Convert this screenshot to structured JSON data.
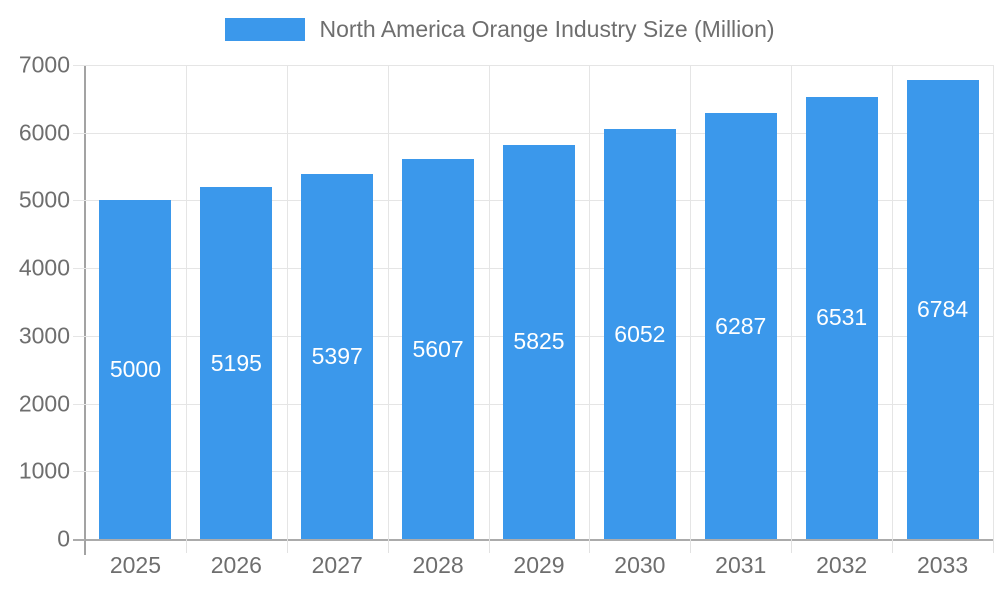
{
  "chart_data": {
    "type": "bar",
    "title": "North America Orange Industry Size (Million)",
    "legend": {
      "position": "top",
      "label": "North America Orange Industry Size (Million)"
    },
    "categories": [
      "2025",
      "2026",
      "2027",
      "2028",
      "2029",
      "2030",
      "2031",
      "2032",
      "2033"
    ],
    "series": [
      {
        "name": "North America Orange Industry Size (Million)",
        "values": [
          5000,
          5195,
          5397,
          5607,
          5825,
          6052,
          6287,
          6531,
          6784
        ]
      }
    ],
    "data_labels": [
      "5000",
      "5195",
      "5397",
      "5607",
      "5825",
      "6052",
      "6287",
      "6531",
      "6784"
    ],
    "xlabel": "",
    "ylabel": "",
    "ylim": [
      0,
      7000
    ],
    "ytick_step": 1000,
    "ytick_labels": [
      "0",
      "1000",
      "2000",
      "3000",
      "4000",
      "5000",
      "6000",
      "7000"
    ],
    "grid": true,
    "colors": {
      "bar": "#3B98EB",
      "bar_value_text": "#ffffff",
      "axis_text": "#6e6e6e",
      "gridline": "#e5e5e5",
      "axis_line": "#ababab"
    }
  }
}
